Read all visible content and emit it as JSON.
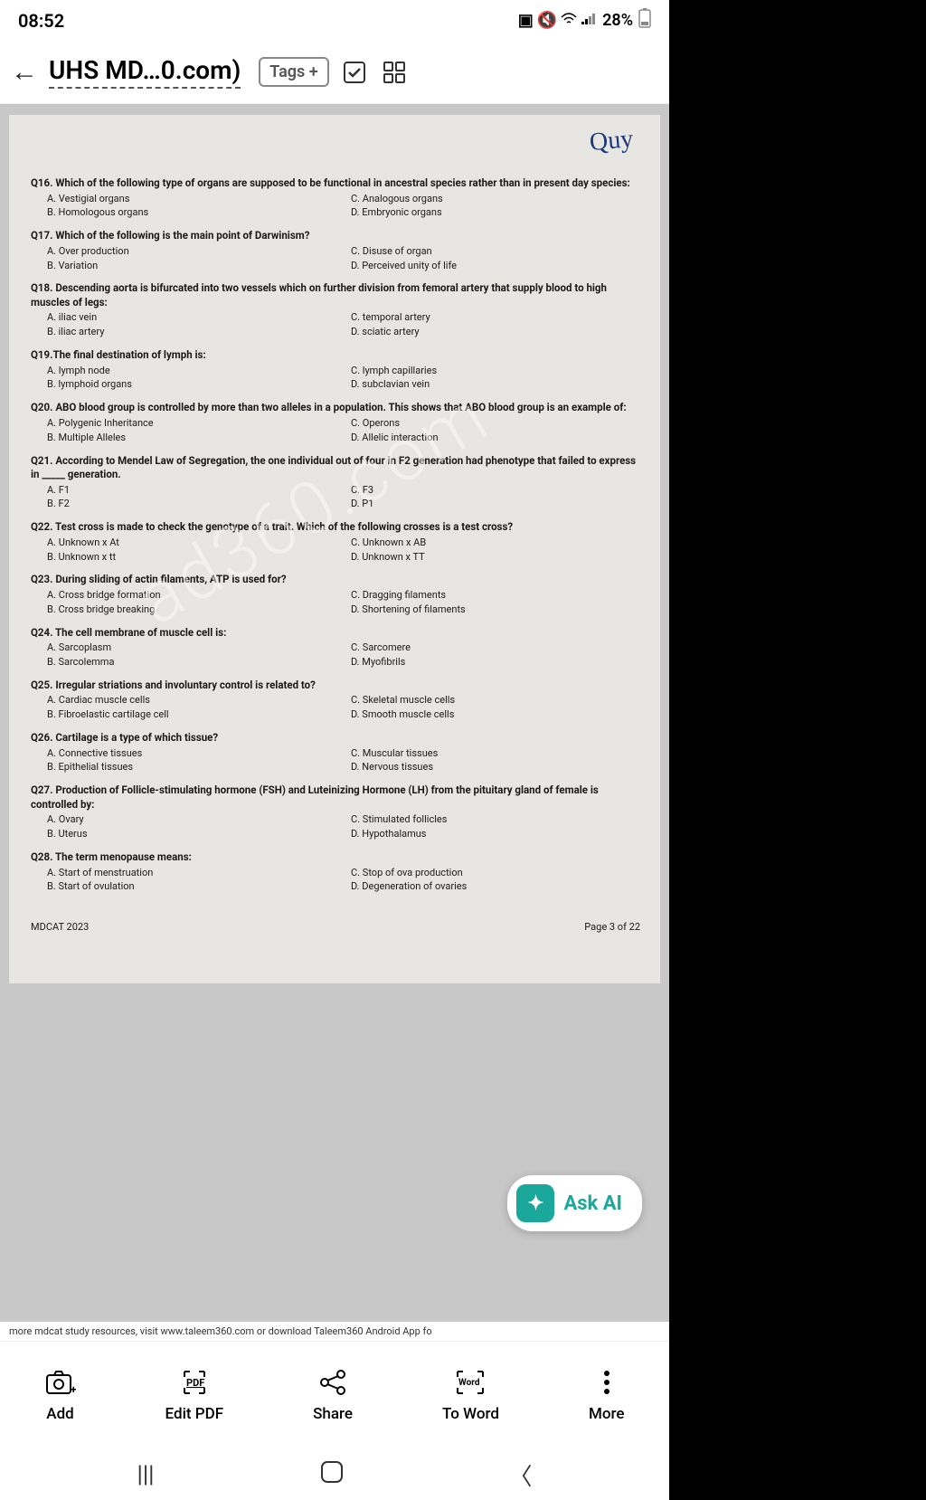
{
  "status": {
    "time": "08:52",
    "battery": "28%"
  },
  "header": {
    "title": "UHS MD…0.com)",
    "tags_label": "Tags +"
  },
  "signature": "Quy",
  "watermark": "ad360.com",
  "questions": [
    {
      "q": "Q16. Which of the following type of organs are supposed to be functional in ancestral species rather than in present day species:",
      "a": "A.  Vestigial organs",
      "b": "B.  Homologous organs",
      "c": "C.  Analogous organs",
      "d": "D.  Embryonic organs"
    },
    {
      "q": "Q17. Which of the following is the main point of Darwinism?",
      "a": "A.  Over production",
      "b": "B.  Variation",
      "c": "C.  Disuse of organ",
      "d": "D.  Perceived unity of life"
    },
    {
      "q": "Q18. Descending aorta is bifurcated into two vessels which on further division from femoral artery that supply blood to high muscles of legs:",
      "a": "A.  iliac vein",
      "b": "B.  iliac artery",
      "c": "C.  temporal artery",
      "d": "D.  sciatic artery"
    },
    {
      "q": "Q19.The final destination of lymph is:",
      "a": "A.  lymph node",
      "b": "B.  lymphoid organs",
      "c": "C.  lymph capillaries",
      "d": "D.  subclavian vein"
    },
    {
      "q": "Q20. ABO blood group is controlled by more than two alleles in a population. This shows that ABO blood group is an example of:",
      "a": "A.  Polygenic Inheritance",
      "b": "B.  Multiple Alleles",
      "c": "C.  Operons",
      "d": "D.  Allelic interaction"
    },
    {
      "q": "Q21. According to Mendel Law of Segregation, the one individual out of four in F2 generation had phenotype that failed to express in _____ generation.",
      "a": "A.  F1",
      "b": "B.  F2",
      "c": "C.  F3",
      "d": "D.  P1"
    },
    {
      "q": "Q22. Test cross is made to check the genotype of a trait. Which of the following crosses is a test cross?",
      "a": "A.  Unknown x At",
      "b": "B.  Unknown x tt",
      "c": "C.  Unknown x AB",
      "d": "D.  Unknown x TT"
    },
    {
      "q": "Q23. During sliding of actin filaments, ATP is used for?",
      "a": "A.  Cross bridge formation",
      "b": "B.  Cross bridge breaking",
      "c": "C.  Dragging filaments",
      "d": "D.  Shortening of filaments"
    },
    {
      "q": "Q24. The cell membrane of muscle cell is:",
      "a": "A.  Sarcoplasm",
      "b": "B.  Sarcolemma",
      "c": "C.  Sarcomere",
      "d": "D.  Myofibrils"
    },
    {
      "q": "Q25. Irregular striations and involuntary control is related to?",
      "a": "A.  Cardiac muscle cells",
      "b": "B.  Fibroelastic cartilage cell",
      "c": "C.  Skeletal muscle cells",
      "d": "D.  Smooth muscle cells"
    },
    {
      "q": "Q26. Cartilage is a type of which tissue?",
      "a": "A.  Connective tissues",
      "b": "B.  Epithelial tissues",
      "c": "C.  Muscular tissues",
      "d": "D.  Nervous tissues"
    },
    {
      "q": "Q27. Production of Follicle-stimulating hormone (FSH) and Luteinizing Hormone (LH) from the pituitary gland of female is controlled by:",
      "a": "A.  Ovary",
      "b": "B.  Uterus",
      "c": "C.  Stimulated follicles",
      "d": "D.  Hypothalamus"
    },
    {
      "q": "Q28. The term menopause means:",
      "a": "A.  Start of menstruation",
      "b": "B.  Start of ovulation",
      "c": "C.  Stop of ova production",
      "d": "D.  Degeneration of ovaries"
    }
  ],
  "footer": {
    "left": "MDCAT 2023",
    "right": "Page 3 of 22"
  },
  "ask_ai": "Ask AI",
  "small_text": "more mdcat study resources, visit www.taleem360.com or download Taleem360 Android App fo",
  "toolbar": {
    "add": "Add",
    "edit": "Edit PDF",
    "share": "Share",
    "word": "To Word",
    "more": "More"
  }
}
